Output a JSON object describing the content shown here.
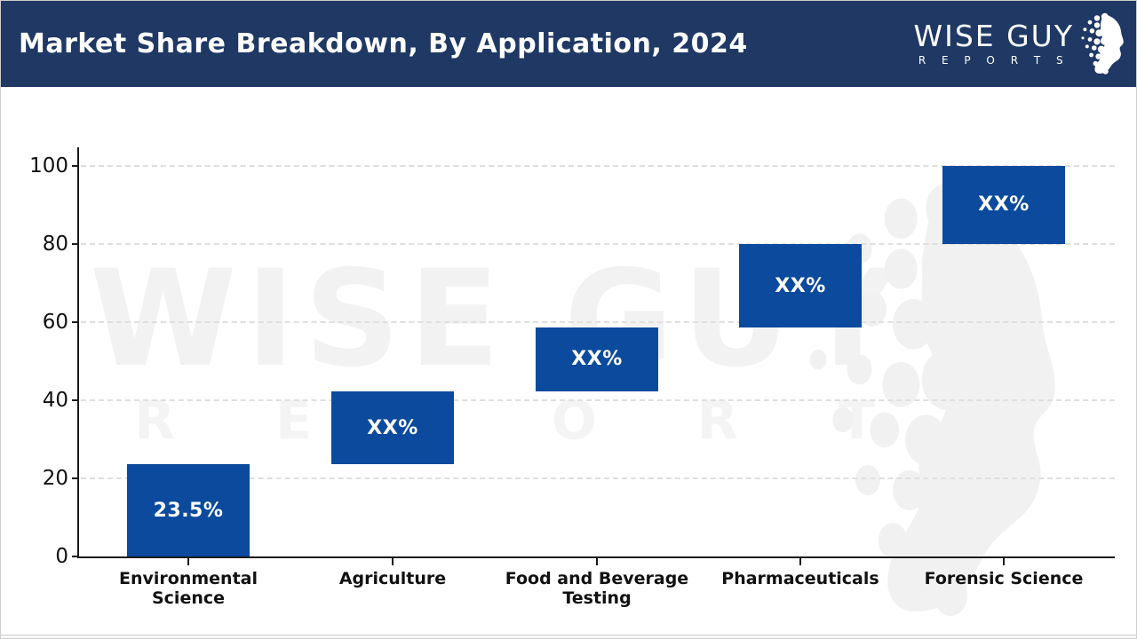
{
  "header": {
    "title": "Market Share Breakdown, By Application, 2024",
    "logo": {
      "name": "WISE GUY",
      "sub": "R E P O R T S"
    }
  },
  "watermark": {
    "line1": "WISE GUY",
    "line2": "R E P O R T S"
  },
  "colors": {
    "header_bg": "#1f3864",
    "bar": "#0b4a9c",
    "bar_label_text": "#ffffff",
    "axis": "#1a1a1a",
    "grid": "#dfdfdf",
    "title_text": "#ffffff"
  },
  "chart_data": {
    "type": "bar",
    "subtype": "waterfall",
    "title": "Market Share Breakdown, By Application, 2024",
    "categories": [
      "Environmental Science",
      "Agriculture",
      "Food and Beverage Testing",
      "Pharmaceuticals",
      "Forensic Science"
    ],
    "category_lines": [
      [
        "Environmental",
        "Science"
      ],
      [
        "Agriculture"
      ],
      [
        "Food and Beverage",
        "Testing"
      ],
      [
        "Pharmaceuticals"
      ],
      [
        "Forensic Science"
      ]
    ],
    "segments": [
      {
        "category": "Environmental Science",
        "start": 0,
        "end": 23.5,
        "label": "23.5%"
      },
      {
        "category": "Agriculture",
        "start": 23.5,
        "end": 42.3,
        "label": "XX%"
      },
      {
        "category": "Food and Beverage Testing",
        "start": 42.3,
        "end": 58.6,
        "label": "XX%"
      },
      {
        "category": "Pharmaceuticals",
        "start": 58.6,
        "end": 79.8,
        "label": "XX%"
      },
      {
        "category": "Forensic Science",
        "start": 79.8,
        "end": 100,
        "label": "XX%"
      }
    ],
    "yticks": [
      0,
      20,
      40,
      60,
      80,
      100
    ],
    "ylim": [
      0,
      104.7
    ],
    "xlabel": "",
    "ylabel": "",
    "grid": "horizontal-dashed",
    "legend": "none",
    "bar_color": "#0b4a9c"
  }
}
